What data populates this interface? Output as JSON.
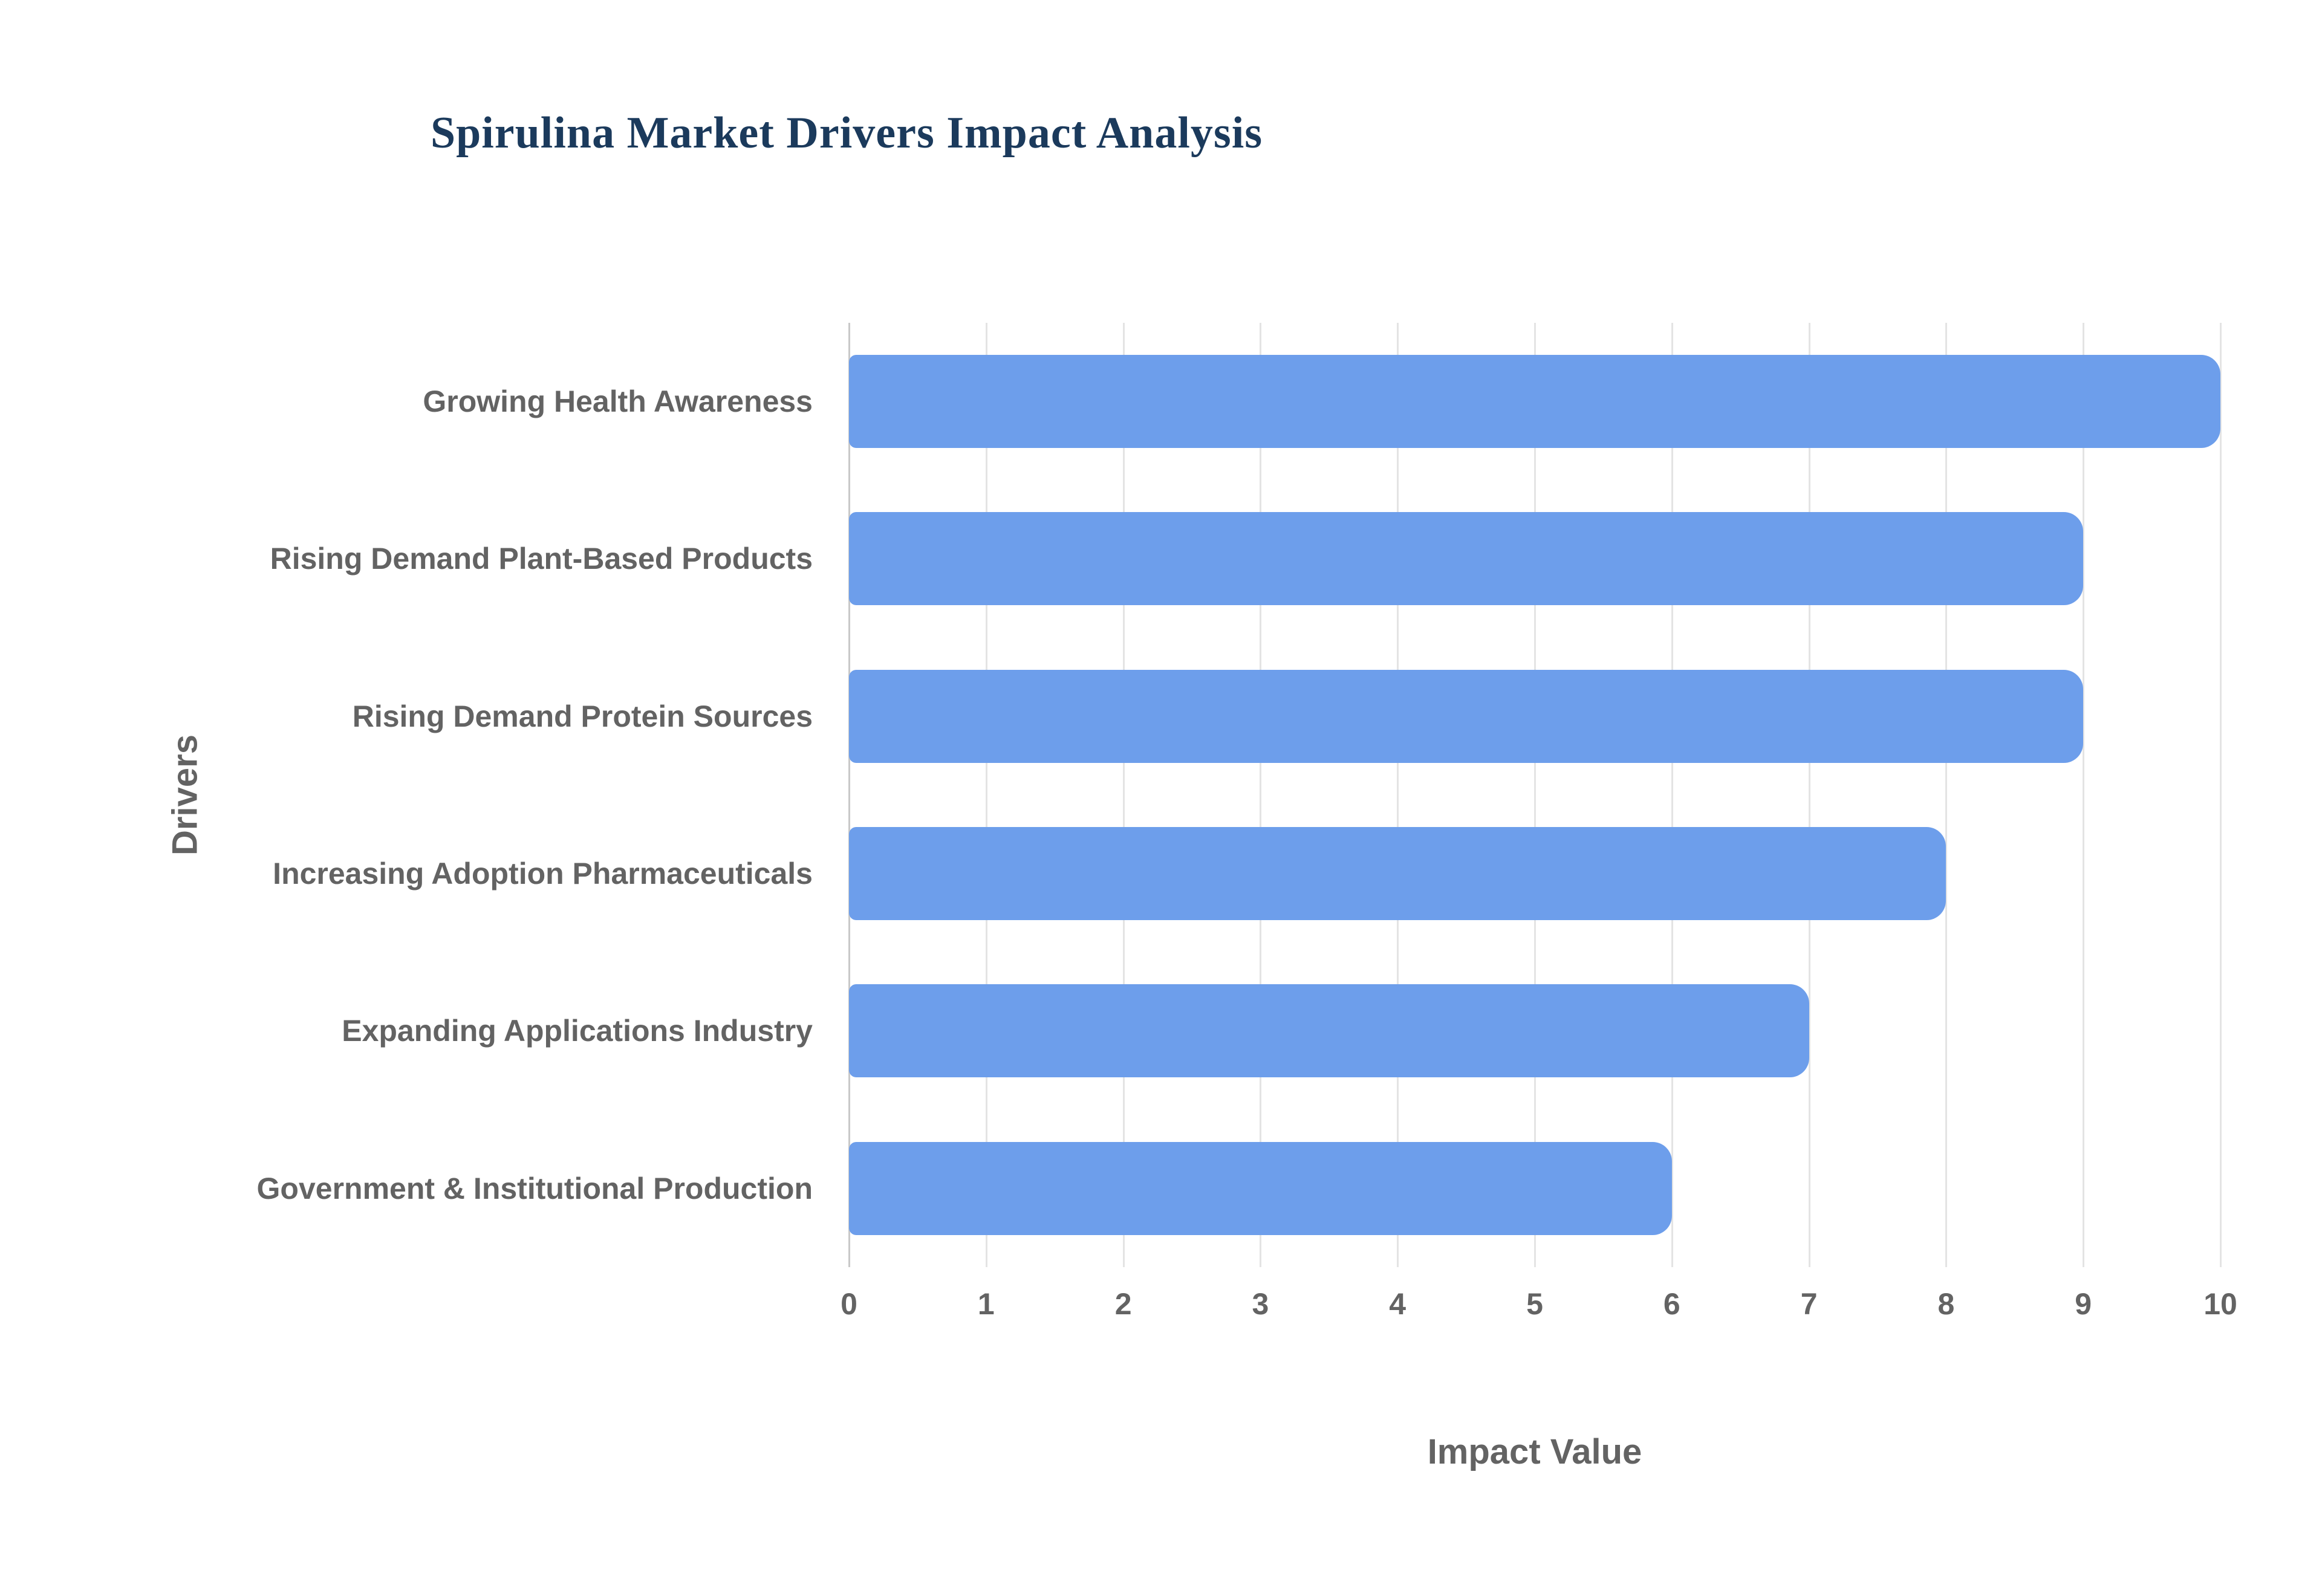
{
  "title": "Spirulina Market Drivers Impact Analysis",
  "chart_data": {
    "type": "bar",
    "orientation": "horizontal",
    "title": "Spirulina Market Drivers Impact Analysis",
    "categories": [
      "Growing Health Awareness",
      "Rising Demand Plant-Based Products",
      "Rising Demand Protein Sources",
      "Increasing Adoption Pharmaceuticals",
      "Expanding Applications Industry",
      "Government & Institutional Production"
    ],
    "values": [
      10,
      9,
      9,
      8,
      7,
      6
    ],
    "xlabel": "Impact Value",
    "ylabel": "Drivers",
    "xlim": [
      0,
      10
    ],
    "xticks": [
      0,
      1,
      2,
      3,
      4,
      5,
      6,
      7,
      8,
      9,
      10
    ],
    "grid": true,
    "legend": "none",
    "colors": {
      "bar": "#6d9eeb",
      "gridline": "#e4e4e4",
      "baseline": "#c9c9c9",
      "labels": "#636363",
      "title": "#1b3a5c"
    }
  }
}
